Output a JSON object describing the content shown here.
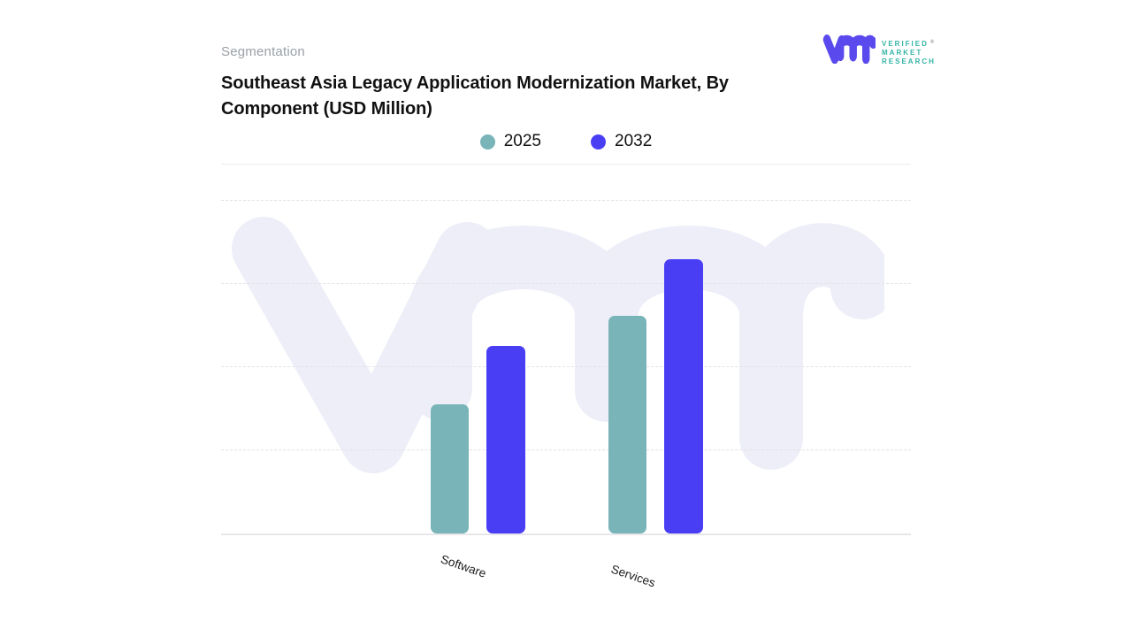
{
  "page": {
    "background_color": "#ffffff"
  },
  "header": {
    "eyebrow": "Segmentation",
    "title_line1": "Southeast Asia Legacy Application Modernization Market, By",
    "title_line2": "Component (USD Million)"
  },
  "brand_logo": {
    "text_lines": [
      "VERIFIED",
      "MARKET",
      "RESEARCH"
    ],
    "registered_symbol": "®",
    "mark_color": "#5a4aed",
    "text_color": "#35b4a5"
  },
  "legend": [
    {
      "label": "2025",
      "color": "#79b4b8"
    },
    {
      "label": "2032",
      "color": "#4a3ef5"
    }
  ],
  "chart_data": {
    "type": "bar",
    "title": "Southeast Asia Legacy Application Modernization Market, By Component (USD Million)",
    "categories": [
      "Software",
      "Services"
    ],
    "series": [
      {
        "name": "2025",
        "color": "#79b4b8",
        "values": [
          1.55,
          2.62
        ]
      },
      {
        "name": "2032",
        "color": "#4a3ef5",
        "values": [
          2.25,
          3.3
        ]
      }
    ],
    "xlabel": "",
    "ylabel": "",
    "units": "USD Million",
    "y_axis": {
      "min": 0,
      "max": 4,
      "tick_labels_visible": false,
      "gridlines": "dashed"
    },
    "legend_position": "top-center",
    "values_note": "bar heights estimated in gridline units; chart shows no numeric axis labels"
  }
}
